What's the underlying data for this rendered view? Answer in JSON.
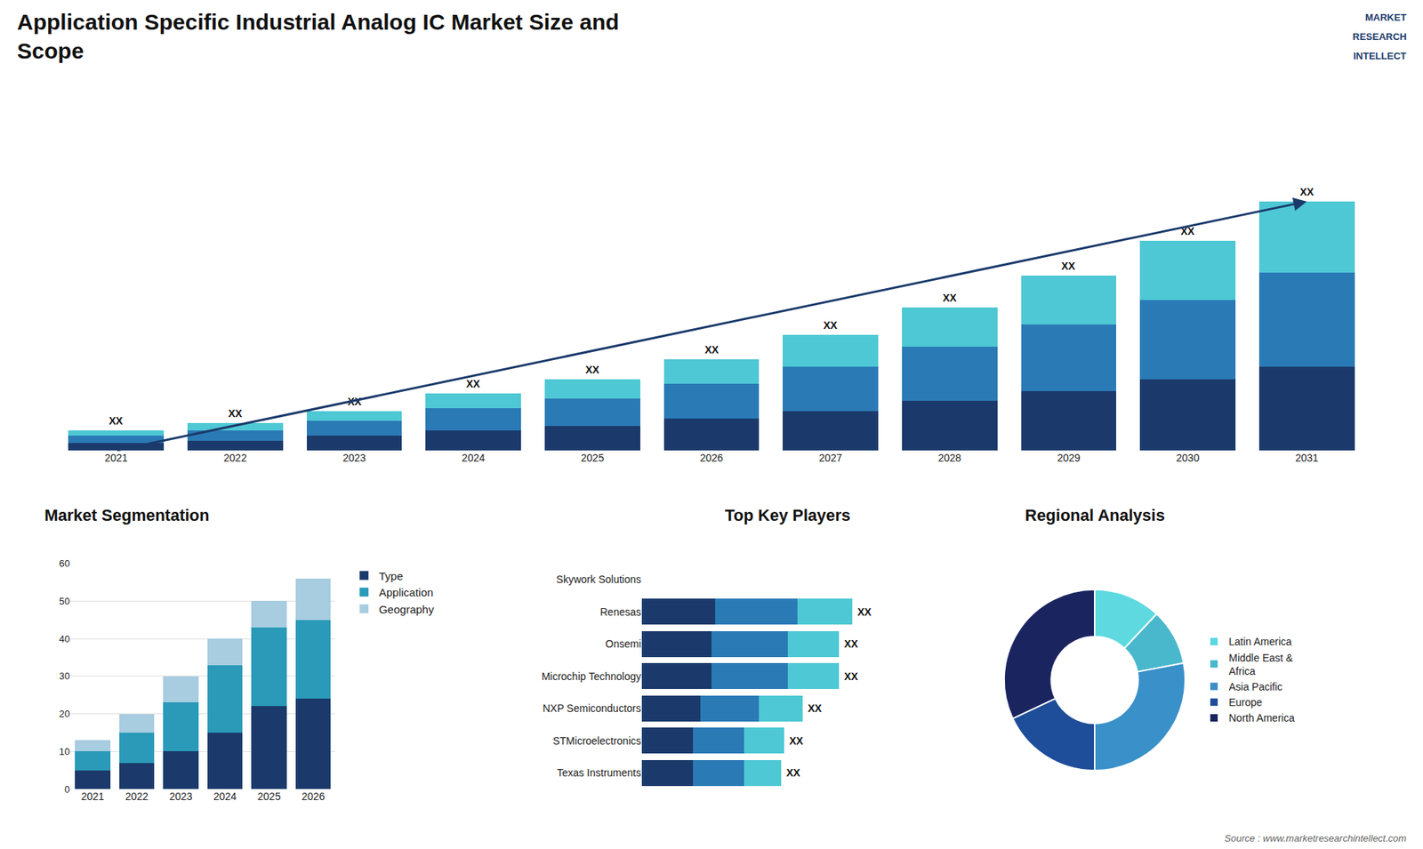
{
  "chart_data": [
    {
      "type": "bar",
      "title": "Application Specific Industrial Analog IC Market Size and\nScope",
      "categories": [
        "2021",
        "2022",
        "2023",
        "2024",
        "2025",
        "2026",
        "2027",
        "2028",
        "2029",
        "2030",
        "2031"
      ],
      "series": [
        {
          "color": "#1b3a6b",
          "values": [
            3,
            4,
            6,
            8,
            10,
            13,
            16,
            20,
            24,
            29,
            34
          ]
        },
        {
          "color": "#2a7ab5",
          "values": [
            3,
            4,
            6,
            9,
            11,
            14,
            18,
            22,
            27,
            32,
            38
          ]
        },
        {
          "color": "#4ec8d4",
          "values": [
            2,
            3,
            4,
            6,
            8,
            10,
            13,
            16,
            20,
            24,
            29
          ]
        }
      ],
      "stacked": true,
      "value_labels": [
        "XX",
        "XX",
        "XX",
        "XX",
        "XX",
        "XX",
        "XX",
        "XX",
        "XX",
        "XX",
        "XX"
      ],
      "ylim": [
        0,
        131.3
      ],
      "grid": false,
      "tick_labels": "x",
      "annotations": [
        "MARKET",
        "RESEARCH",
        "INTELLECT",
        "Source : www.marketresearchintellect.com"
      ]
    },
    {
      "type": "bar",
      "title": "Market Segmentation",
      "categories": [
        "2021",
        "2022",
        "2023",
        "2024",
        "2025",
        "2026"
      ],
      "series": [
        {
          "name": "Type",
          "color": "#1b3a6b",
          "values": [
            5,
            7,
            10,
            15,
            22,
            24
          ]
        },
        {
          "name": "Application",
          "color": "#2a9ab8",
          "values": [
            5,
            8,
            13,
            18,
            21,
            21
          ]
        },
        {
          "name": "Geography",
          "color": "#a8cce0",
          "values": [
            3,
            5,
            7,
            7,
            7,
            11
          ]
        }
      ],
      "stacked": true,
      "ylim": [
        0,
        60
      ],
      "yticks": [
        0,
        10,
        20,
        30,
        40,
        50,
        60
      ],
      "grid": true,
      "legend": "right"
    },
    {
      "type": "bar",
      "title": "Top Key Players",
      "orientation": "horizontal",
      "categories": [
        "Skywork Solutions",
        "Renesas",
        "Onsemi",
        "Microchip Technology",
        "NXP Semiconductors",
        "STMicroelectronics",
        "Texas Instruments"
      ],
      "series": [
        {
          "color": "#1b3a6b",
          "values": [
            0,
            4,
            3.8,
            3.8,
            3.2,
            2.8,
            2.8
          ]
        },
        {
          "color": "#2a7ab5",
          "values": [
            0,
            4.5,
            4.2,
            4.2,
            3.2,
            2.8,
            2.8
          ]
        },
        {
          "color": "#4ec8d4",
          "values": [
            0,
            3.0,
            2.8,
            2.8,
            2.4,
            2.2,
            2.0
          ]
        }
      ],
      "stacked": true,
      "value_labels": [
        null,
        "XX",
        "XX",
        "XX",
        "XX",
        "XX",
        "XX"
      ],
      "xlim": [
        0,
        16
      ],
      "grid": false,
      "tick_labels": "y"
    },
    {
      "type": "donut",
      "title": "Regional Analysis",
      "categories": [
        "Latin America",
        "Middle East &\nAfrica",
        "Asia Pacific",
        "Europe",
        "North America"
      ],
      "values": [
        12,
        10,
        28,
        18,
        32
      ],
      "colors": [
        "#5dd9df",
        "#4ab8cc",
        "#3a90c8",
        "#1e4d99",
        "#1a2560"
      ],
      "legend": "right"
    }
  ]
}
